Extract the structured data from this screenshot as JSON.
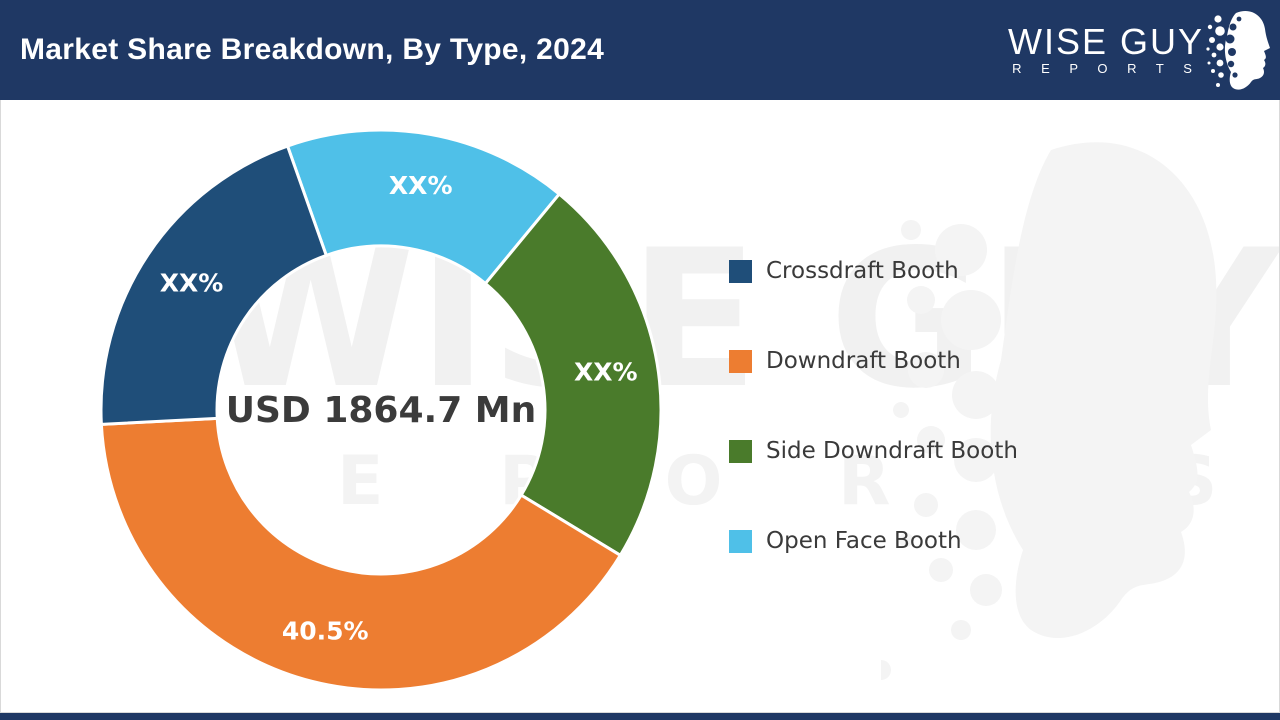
{
  "header": {
    "title": "Market Share Breakdown, By Type, 2024",
    "background_color": "#1F3864",
    "logo": {
      "line1": "WISE GUY",
      "line2": "R E P O R T S"
    }
  },
  "watermark": {
    "line1": "WISE GUY",
    "line2": "R E P O R T S"
  },
  "chart_data": {
    "type": "pie",
    "subtype": "donut",
    "title": "Market Share Breakdown, By Type, 2024",
    "center_label": "USD 1864.7 Mn",
    "start_angle_deg": -19.5,
    "legend_position": "right",
    "segments": [
      {
        "name": "Open Face Booth",
        "display_label": "XX%",
        "value_pct_est": 16.4,
        "color": "#4FC0E8"
      },
      {
        "name": "Side Downdraft Booth",
        "display_label": "XX%",
        "value_pct_est": 22.7,
        "color": "#4A7B2B"
      },
      {
        "name": "Downdraft Booth",
        "display_label": "40.5%",
        "value_pct_est": 40.5,
        "color": "#ED7D31"
      },
      {
        "name": "Crossdraft Booth",
        "display_label": "XX%",
        "value_pct_est": 20.4,
        "color": "#1F4E79"
      }
    ],
    "legend": [
      {
        "label": "Crossdraft Booth",
        "color": "#1F4E79"
      },
      {
        "label": "Downdraft Booth",
        "color": "#ED7D31"
      },
      {
        "label": "Side Downdraft Booth",
        "color": "#4A7B2B"
      },
      {
        "label": "Open Face Booth",
        "color": "#4FC0E8"
      }
    ]
  }
}
